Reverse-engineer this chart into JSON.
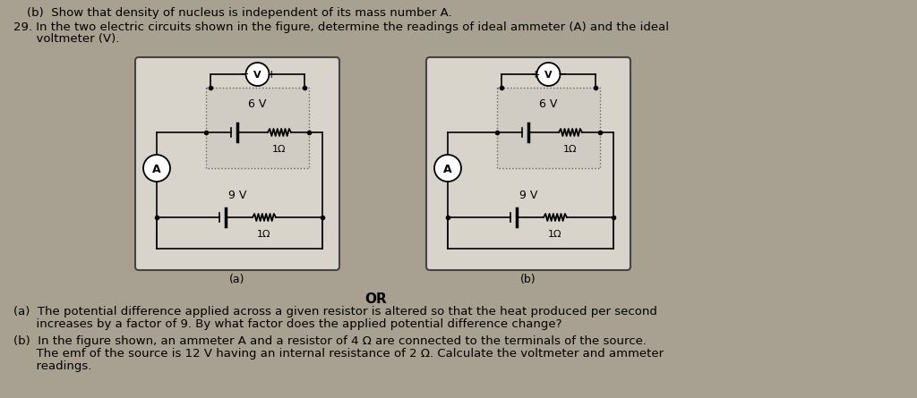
{
  "background_color": "#a8a090",
  "title_b": "(b)  Show that density of nucleus is independent of its mass number A.",
  "q29_line1": "29. In the two electric circuits shown in the figure, determine the readings of ideal ammeter (A) and the ideal",
  "q29_line2": "      voltmeter (V).",
  "or_text": "OR",
  "qa_line1": "(a)  The potential difference applied across a given resistor is altered so that the heat produced per second",
  "qa_line2": "      increases by a factor of 9. By what factor does the applied potential difference change?",
  "qb_line1": "(b)  In the figure shown, an ammeter A and a resistor of 4 Ω are connected to the terminals of the source.",
  "qb_line2": "      The emf of the source is 12 V having an internal resistance of 2 Ω. Calculate the voltmeter and ammeter",
  "qb_line3": "      readings.",
  "fig_a_label": "(a)",
  "fig_b_label": "(b)",
  "box_bg": "#d8d4cc",
  "inner_box_bg": "#d0ccC4",
  "wire_color": "#111111",
  "component_color": "#222222"
}
